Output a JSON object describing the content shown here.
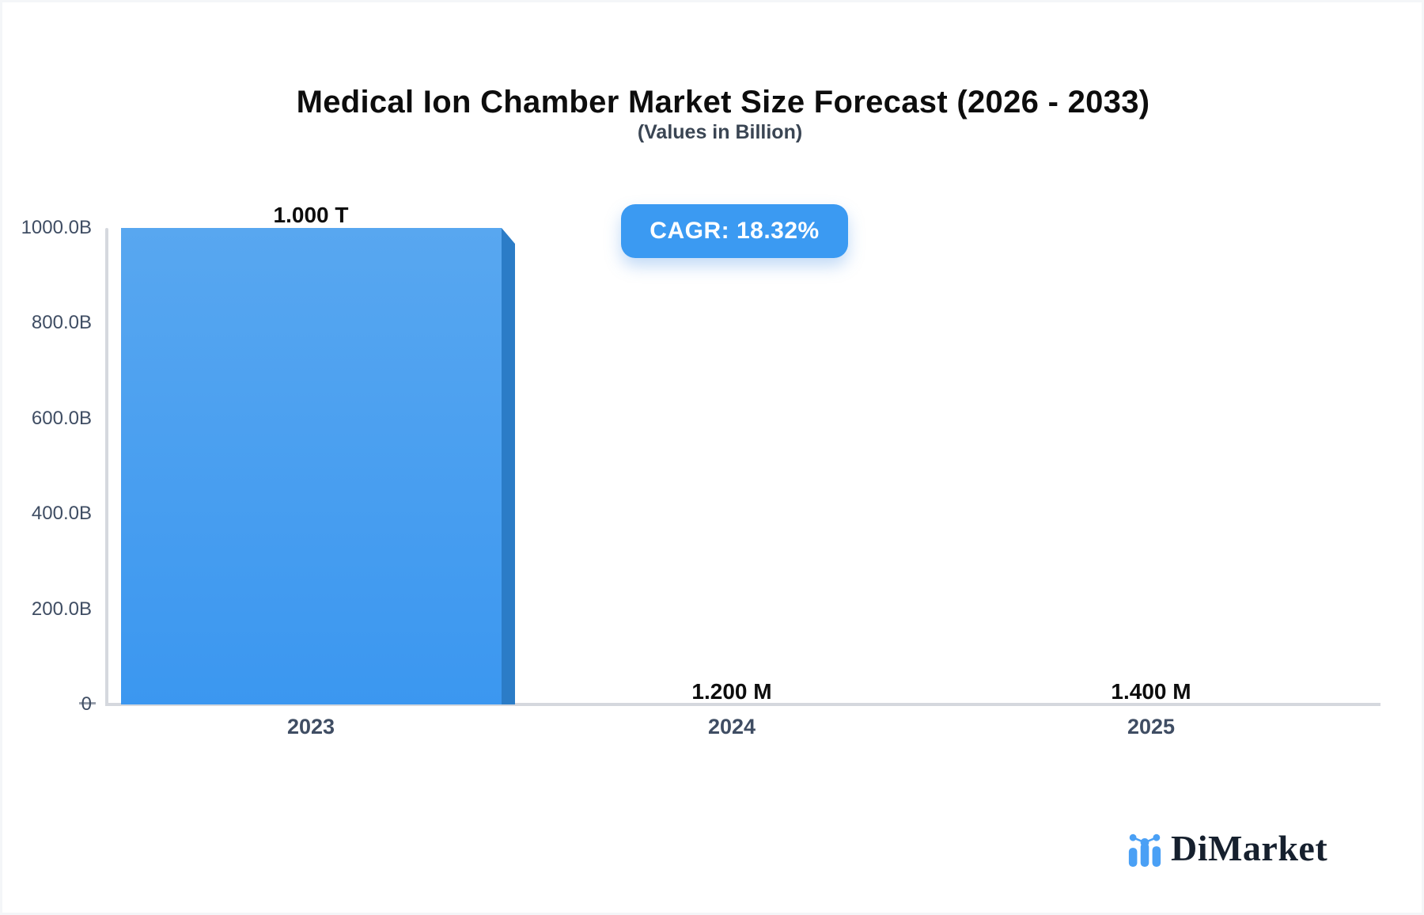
{
  "title": "Medical Ion Chamber Market Size Forecast (2026 - 2033)",
  "subtitle": "(Values in Billion)",
  "cagr_badge": "CAGR: 18.32%",
  "brand": {
    "name": "DiMarket"
  },
  "colors": {
    "title_text": "#0d0d0d",
    "tick_text": "#3f4d63",
    "bar_top": "#58a7f0",
    "bar_bottom": "#3b97f0",
    "bar_side": "#2b7cc7",
    "badge": "#3b9af2",
    "axis": "#d5d8de",
    "brand_blue": "#4aa0f5",
    "brand_text": "#16202e"
  },
  "chart_data": {
    "type": "bar",
    "title": "Medical Ion Chamber Market Size Forecast (2026 - 2033)",
    "subtitle": "(Values in Billion)",
    "categories": [
      "2023",
      "2024",
      "2025"
    ],
    "values": [
      1000,
      0.0012,
      0.0014
    ],
    "value_labels": [
      "1.000 T",
      "1.200 M",
      "1.400 M"
    ],
    "units": "billions",
    "ylim": [
      0,
      1000
    ],
    "yticks": [
      {
        "label": "1000.0B",
        "value": 1000
      },
      {
        "label": "800.0B",
        "value": 800
      },
      {
        "label": "600.0B",
        "value": 600
      },
      {
        "label": "400.0B",
        "value": 400
      },
      {
        "label": "200.0B",
        "value": 200
      },
      {
        "label": "0",
        "value": 0
      }
    ],
    "xlabel": "",
    "ylabel": "",
    "grid": false,
    "legend": false,
    "annotations": [
      "CAGR: 18.32%"
    ]
  }
}
